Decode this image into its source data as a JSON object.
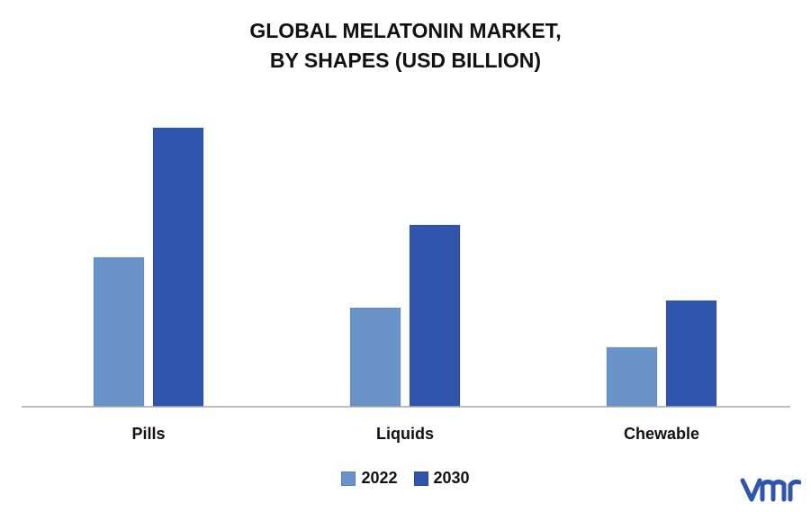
{
  "chart_data": {
    "type": "bar",
    "title_lines": [
      "GLOBAL MELATONIN MARKET,",
      "BY SHAPES (USD BILLION)"
    ],
    "categories": [
      "Pills",
      "Liquids",
      "Chewable"
    ],
    "series": [
      {
        "name": "2022",
        "color": "#6a94c9",
        "values": [
          1.66,
          1.1,
          0.66
        ]
      },
      {
        "name": "2030",
        "color": "#2f55ad",
        "values": [
          3.1,
          2.02,
          1.18
        ]
      }
    ],
    "ylim": [
      0,
      3.5
    ],
    "grid": false,
    "legend_position": "bottom-center"
  },
  "brand": {
    "logo_icon": "vmr-logo-icon",
    "logo_color": "#2f55ad"
  }
}
